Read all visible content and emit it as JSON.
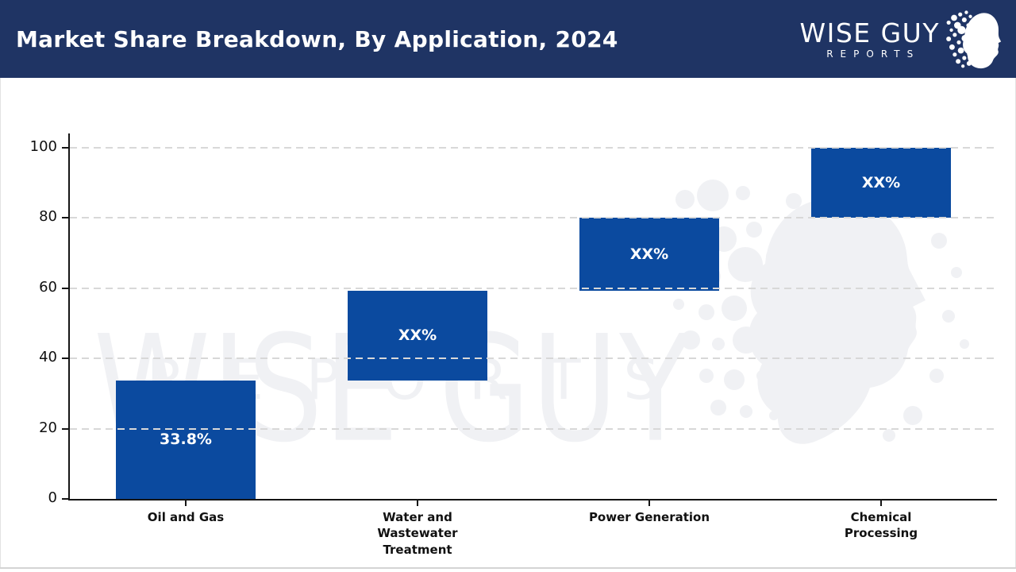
{
  "header": {
    "title": "Market Share Breakdown, By Application, 2024",
    "brand": {
      "name": "WISE GUY",
      "sub": "REPORTS"
    }
  },
  "watermark": {
    "line1": "WISE GUY",
    "line2": "REPORTS"
  },
  "chart_data": {
    "type": "bar",
    "subtype": "waterfall",
    "title": "Market Share Breakdown, By Application, 2024",
    "categories": [
      "Oil and Gas",
      "Water and\nWastewater\nTreatment",
      "Power Generation",
      "Chemical\nProcessing"
    ],
    "segments": [
      {
        "category": "Oil and Gas",
        "start": 0,
        "end": 33.8,
        "value": 33.8,
        "label": "33.8%"
      },
      {
        "category": "Water and Wastewater Treatment",
        "start": 33.8,
        "end": 59.3,
        "value": 25.5,
        "label": "XX%"
      },
      {
        "category": "Power Generation",
        "start": 59.3,
        "end": 80.2,
        "value": 20.9,
        "label": "XX%"
      },
      {
        "category": "Chemical Processing",
        "start": 80.2,
        "end": 100,
        "value": 19.8,
        "label": "XX%"
      }
    ],
    "yticks": [
      0,
      20,
      40,
      60,
      80,
      100
    ],
    "ylim": [
      0,
      104
    ],
    "grid": "horizontal dashed, drawn over bars",
    "legend": "none",
    "bar_color": "#0b4a9f",
    "header_color": "#1f3464",
    "label_color": "#ffffff"
  }
}
